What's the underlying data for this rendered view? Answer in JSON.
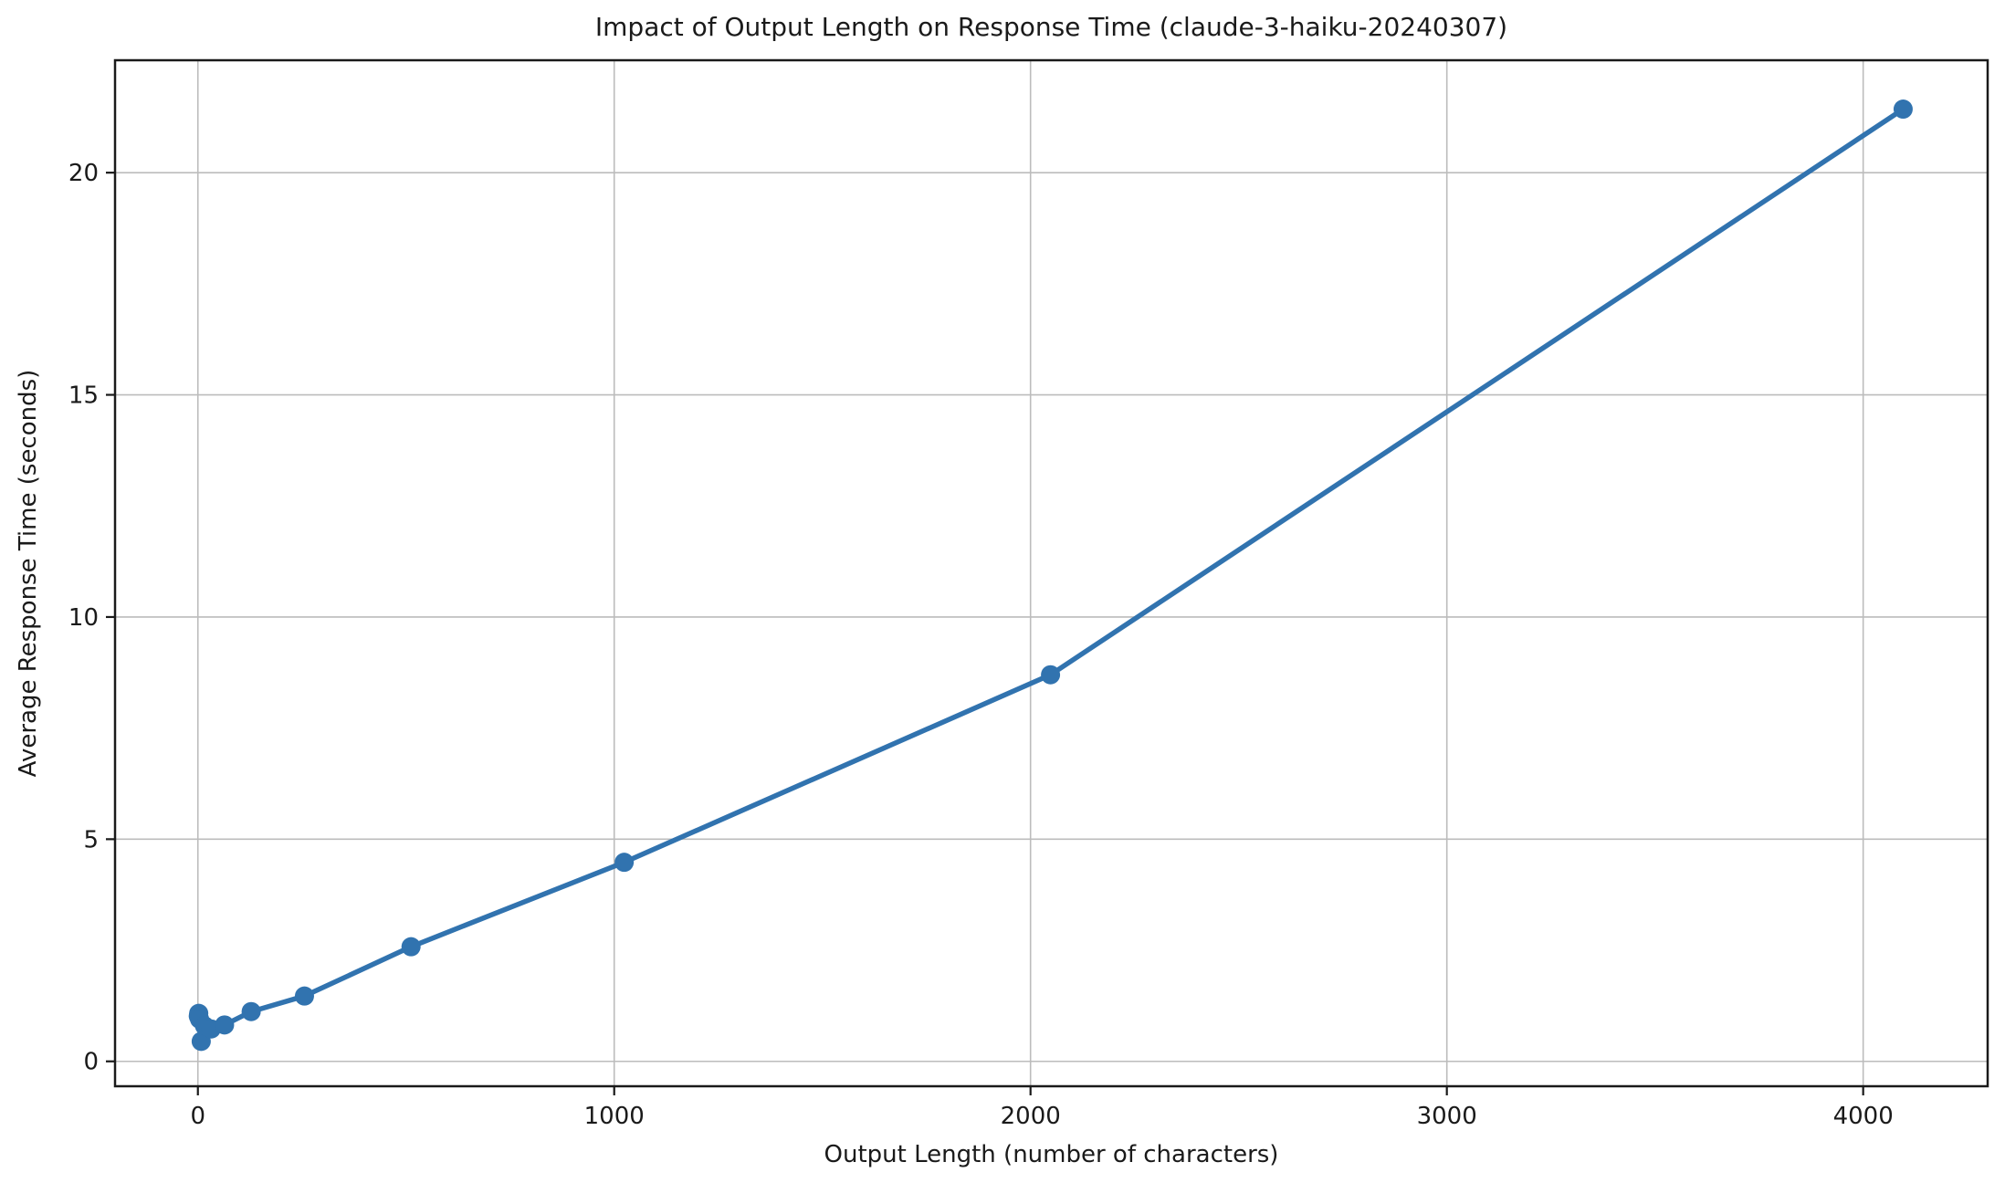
{
  "figure": {
    "background": "#ffffff"
  },
  "chart_data": {
    "type": "line",
    "title": "Impact of Output Length on Response Time (claude-3-haiku-20240307)",
    "xlabel": "Output Length (number of characters)",
    "ylabel": "Average Response Time (seconds)",
    "series": [
      {
        "x": [
          1,
          2,
          4,
          8,
          16,
          32,
          64,
          128,
          256,
          512,
          1024,
          2048,
          4096
        ],
        "y": [
          1.02,
          1.08,
          0.95,
          0.45,
          0.8,
          0.73,
          0.82,
          1.12,
          1.47,
          2.58,
          4.48,
          8.7,
          21.43
        ],
        "color": "#3173af",
        "marker": "circle",
        "line_width": 5.5,
        "marker_radius": 10.5
      }
    ],
    "x_ticks": [
      0,
      1000,
      2000,
      3000,
      4000
    ],
    "x_tick_labels": [
      "0",
      "1000",
      "2000",
      "3000",
      "4000"
    ],
    "y_ticks": [
      0,
      5,
      10,
      15,
      20
    ],
    "y_tick_labels": [
      "0",
      "5",
      "10",
      "15",
      "20"
    ],
    "xlim": [
      -199,
      4299
    ],
    "ylim": [
      -0.56,
      22.53
    ],
    "grid": true,
    "grid_color": "#bcbcbc",
    "spine_color": "#1a1a1a",
    "text_color": "#1a1a1a",
    "tick_font_size": 26,
    "legend": "none"
  }
}
